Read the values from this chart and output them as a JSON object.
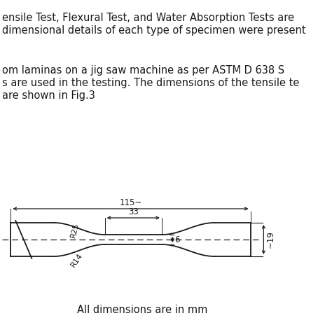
{
  "bg_color": "#ffffff",
  "text_color": "#1a1a1a",
  "line_color": "#1a1a1a",
  "header_line1": "ensile Test, Flexural Test, and Water Absorption Tests are",
  "header_line2": "dimensional details of each type of specimen were present",
  "body_line1": "om laminas on a jig saw machine as per ASTM D 638 S",
  "body_line2": "s are used in the testing. The dimensions of the tensile te",
  "body_line3": "are shown in Fig.3",
  "caption": "All dimensions are in mm",
  "dim_115": "115~",
  "dim_33": "33",
  "dim_6": "6",
  "dim_19": "~19",
  "radius_25": "R25",
  "radius_14": "R14",
  "font_size_text": 10.5,
  "font_size_dim": 8.5,
  "font_size_radius": 8.0
}
